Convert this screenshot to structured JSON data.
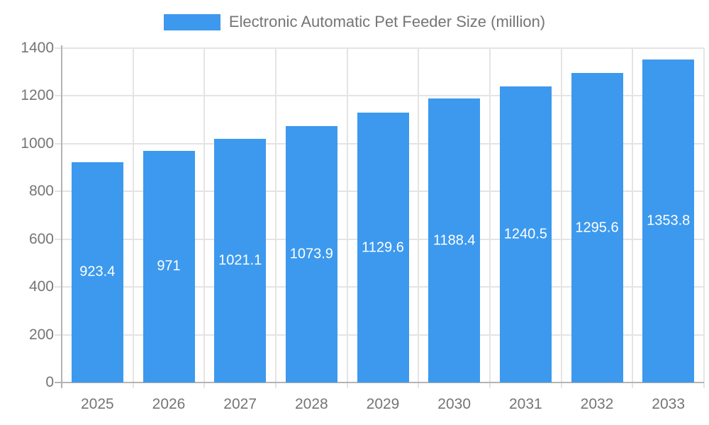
{
  "chart_data": {
    "type": "bar",
    "title": "Electronic Automatic Pet Feeder Size (million)",
    "categories": [
      "2025",
      "2026",
      "2027",
      "2028",
      "2029",
      "2030",
      "2031",
      "2032",
      "2033"
    ],
    "values": [
      923.4,
      971,
      1021.1,
      1073.9,
      1129.6,
      1188.4,
      1240.5,
      1295.6,
      1353.8
    ],
    "value_labels": [
      "923.4",
      "971",
      "1021.1",
      "1073.9",
      "1129.6",
      "1188.4",
      "1240.5",
      "1295.6",
      "1353.8"
    ],
    "series": [
      {
        "name": "Electronic Automatic Pet Feeder Size (million)",
        "values": [
          923.4,
          971,
          1021.1,
          1073.9,
          1129.6,
          1188.4,
          1240.5,
          1295.6,
          1353.8
        ]
      }
    ],
    "xlabel": "",
    "ylabel": "",
    "ylim": [
      0,
      1400
    ],
    "ytick_step": 200,
    "ytick_labels": [
      "0",
      "200",
      "400",
      "600",
      "800",
      "1000",
      "1200",
      "1400"
    ],
    "grid": "on",
    "legend_position": "top-center",
    "value_labels_position": "inside-center",
    "colors": {
      "bar": "#3C99EE",
      "grid": "#E4E4E4",
      "axis": "#B3B3B3",
      "text": "#757575",
      "value_text": "#FFFFFF",
      "background": "#FFFFFF"
    }
  }
}
